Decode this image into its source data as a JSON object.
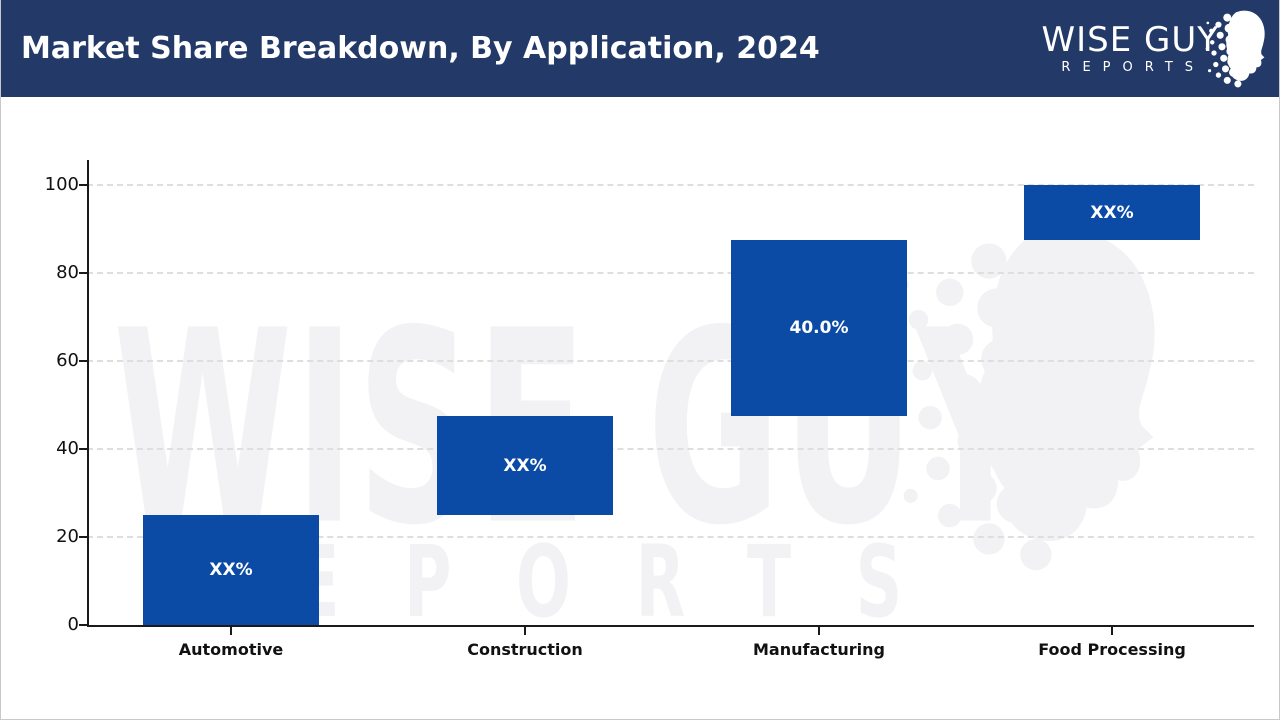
{
  "header": {
    "title": "Market Share Breakdown, By Application, 2024"
  },
  "logo": {
    "name": "WISE GUY",
    "subtitle": "REPORTS"
  },
  "watermark": {
    "line1": "WISE GUY",
    "line2": "REPORTS"
  },
  "colors": {
    "header_bg": "#233A68",
    "bar": "#0B4AA5",
    "grid": "#DEDEDE",
    "axis": "#1A1A1A",
    "watermark": "#F2F2F4",
    "page_border": "#C9C9C9",
    "title_text": "#FFFFFF",
    "bar_label_text": "#FFFFFF"
  },
  "chart_data": {
    "type": "bar",
    "subtype": "floating-segment-waterfall",
    "title": "Market Share Breakdown, By Application, 2024",
    "categories": [
      "Automotive",
      "Construction",
      "Manufacturing",
      "Food Processing"
    ],
    "series": [
      {
        "name": "Market share (%)",
        "segments": [
          {
            "category": "Automotive",
            "start": 0,
            "end": 25,
            "value_label": "XX%"
          },
          {
            "category": "Construction",
            "start": 25,
            "end": 47.5,
            "value_label": "XX%"
          },
          {
            "category": "Manufacturing",
            "start": 47.5,
            "end": 87.5,
            "value_label": "40.0%"
          },
          {
            "category": "Food Processing",
            "start": 87.5,
            "end": 100,
            "value_label": "XX%"
          }
        ]
      }
    ],
    "xlabel": "",
    "ylabel": "",
    "ylim": [
      0,
      100
    ],
    "yticks": [
      0,
      20,
      40,
      60,
      80,
      100
    ],
    "grid": "horizontal-dashed",
    "legend": "none",
    "bar_color": "#0B4AA5"
  }
}
